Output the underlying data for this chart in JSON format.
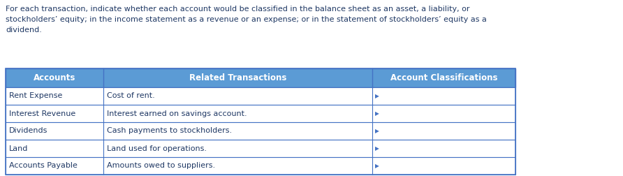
{
  "title_lines": [
    "For each transaction, indicate whether each account would be classified in the balance sheet as an asset, a liability, or",
    "stockholders’ equity; in the income statement as a revenue or an expense; or in the statement of stockholders’ equity as a",
    "dividend."
  ],
  "title_color": "#1F3864",
  "header_bg": "#5B9BD5",
  "header_text_color": "#FFFFFF",
  "header_labels": [
    "Accounts",
    "Related Transactions",
    "Account Classifications"
  ],
  "rows": [
    [
      "Rent Expense",
      "Cost of rent."
    ],
    [
      "Interest Revenue",
      "Interest earned on savings account."
    ],
    [
      "Dividends",
      "Cash payments to stockholders."
    ],
    [
      "Land",
      "Land used for operations."
    ],
    [
      "Accounts Payable",
      "Amounts owed to suppliers."
    ]
  ],
  "row_text_color": "#1F3864",
  "border_color": "#4472C4",
  "bg_color": "#FFFFFF",
  "font_size": 8.0,
  "header_font_size": 8.5
}
